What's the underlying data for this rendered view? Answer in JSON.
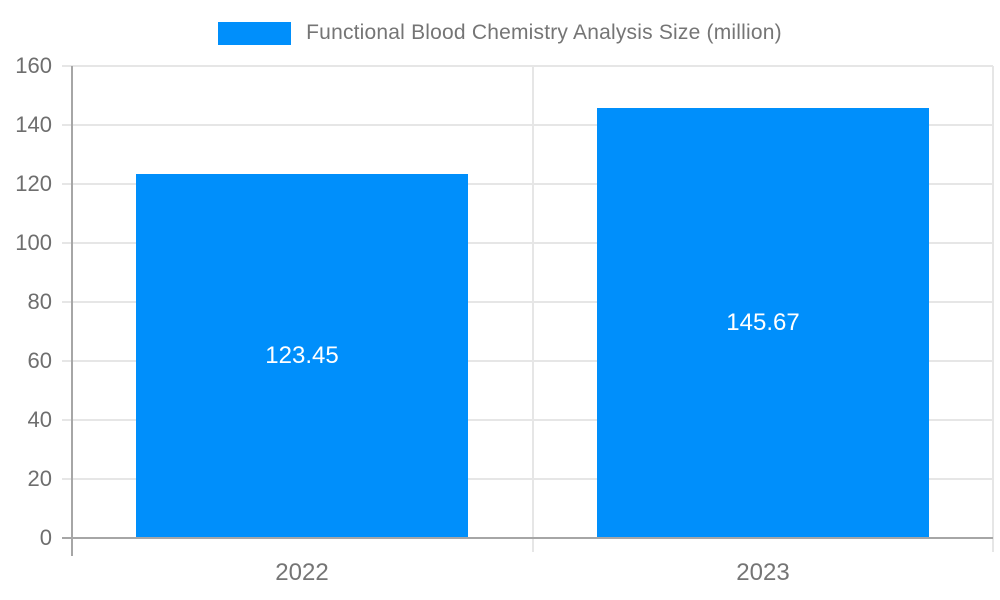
{
  "legend": {
    "items": [
      {
        "label": "Functional Blood Chemistry Analysis Size (million)",
        "color": "#008FFB"
      }
    ]
  },
  "chart_data": {
    "type": "bar",
    "title": "Functional Blood Chemistry Analysis Size (million)",
    "categories": [
      "2022",
      "2023"
    ],
    "series": [
      {
        "name": "Functional Blood Chemistry Analysis Size (million)",
        "color": "#008FFB",
        "values": [
          123.45,
          145.67
        ]
      }
    ],
    "data_labels": [
      "123.45",
      "145.67"
    ],
    "xlabel": "",
    "ylabel": "",
    "ylim": [
      0,
      160
    ],
    "yticks": [
      0,
      20,
      40,
      60,
      80,
      100,
      120,
      140,
      160
    ],
    "grid": true,
    "legend_position": "top"
  },
  "colors": {
    "bar": "#008FFB",
    "grid_line": "#e6e6e6",
    "axis_line": "#a6a6a6",
    "axis_text": "#757575",
    "ytick_text": "#6e6e6e",
    "data_label_text": "#ffffff",
    "background": "#ffffff"
  }
}
